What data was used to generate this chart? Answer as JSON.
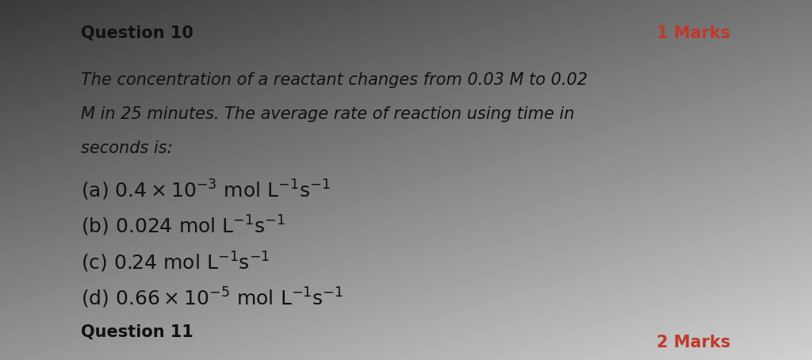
{
  "bg_color_dark": "#3a3a3a",
  "bg_color_light": "#d0d0d0",
  "title_q10": "Question 10",
  "title_marks": "1 Marks",
  "marks_color": "#c0392b",
  "question_text_line1": "The concentration of a reactant changes from 0.03 M to 0.02",
  "question_text_line2": "M in 25 minutes. The average rate of reaction using time in",
  "question_text_line3": "seconds is:",
  "title_q11": "Question 11",
  "marks2_text": "2 Marks",
  "text_color": "#111111",
  "font_size_title": 15,
  "font_size_text": 15,
  "font_size_options": 16
}
